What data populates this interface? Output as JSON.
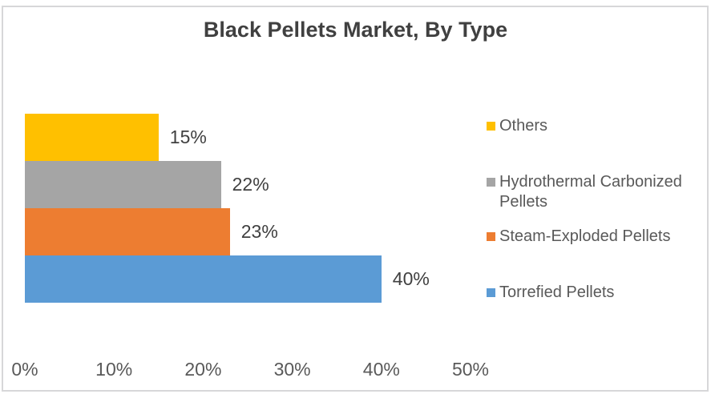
{
  "card": {
    "background": "#FFFFFF",
    "border_color": "#D7D7D9"
  },
  "style": {
    "title_color": "#404040",
    "data_label_color": "#404040",
    "axis_label_color": "#595959",
    "legend_text_color": "#595959"
  },
  "chart_data": {
    "type": "bar",
    "orientation": "horizontal",
    "title": "Black Pellets Market, By Type",
    "xlabel": "",
    "ylabel": "",
    "categories": [
      "Others",
      "Hydrothermal Carbonized Pellets",
      "Steam-Exploded Pellets",
      "Torrefied Pellets"
    ],
    "values": [
      15,
      22,
      23,
      40
    ],
    "data_labels": [
      "15%",
      "22%",
      "23%",
      "40%"
    ],
    "colors": [
      "#FFC000",
      "#A5A5A5",
      "#ED7D31",
      "#5B9BD5"
    ],
    "xlim": [
      0,
      50
    ],
    "xtick_values": [
      0,
      10,
      20,
      30,
      40,
      50
    ],
    "xtick_labels": [
      "0%",
      "10%",
      "20%",
      "30%",
      "40%",
      "50%"
    ],
    "grid": false,
    "legend_position": "right",
    "legend": [
      {
        "label": "Others",
        "color": "#FFC000"
      },
      {
        "label": "Hydrothermal Carbonized Pellets",
        "color": "#A5A5A5"
      },
      {
        "label": "Steam-Exploded Pellets",
        "color": "#ED7D31"
      },
      {
        "label": "Torrefied Pellets",
        "color": "#5B9BD5"
      }
    ]
  }
}
